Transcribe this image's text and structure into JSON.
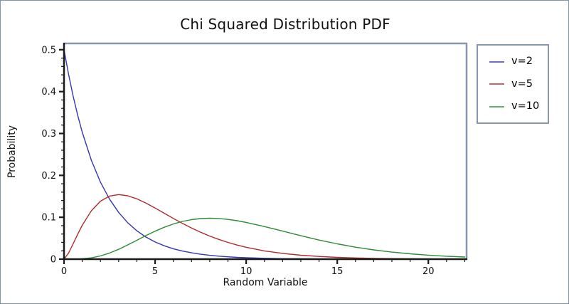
{
  "frame": {
    "background": "#ffffff",
    "window_border_color": "#7f95a8",
    "axis_color": "#1a1a1a",
    "box_color": "#8796ad",
    "text_color": "#111111"
  },
  "chart_data": {
    "type": "line",
    "title": "Chi Squared Distribution PDF",
    "xlabel": "Random Variable",
    "ylabel": "Probability",
    "xlim": [
      0,
      22.1
    ],
    "ylim": [
      0,
      0.515
    ],
    "grid": false,
    "legend_position": "outside-right",
    "x_ticks": {
      "values": [
        0,
        5,
        10,
        15,
        20
      ],
      "labels": [
        "0",
        "5",
        "10",
        "15",
        "20"
      ],
      "minor_step": 1
    },
    "y_ticks": {
      "values": [
        0,
        0.1,
        0.2,
        0.3,
        0.4,
        0.5
      ],
      "labels": [
        "0",
        "0.1",
        "0.2",
        "0.3",
        "0.4",
        "0.5"
      ],
      "minor_step": 0.02
    },
    "x": [
      0,
      0.25,
      0.5,
      0.75,
      1,
      1.5,
      2,
      2.5,
      3,
      3.5,
      4,
      4.5,
      5,
      5.5,
      6,
      6.5,
      7,
      7.5,
      8,
      8.5,
      9,
      9.5,
      10,
      11,
      12,
      13,
      14,
      15,
      16,
      17,
      18,
      19,
      20,
      21,
      22
    ],
    "series": [
      {
        "name": "v=2",
        "color": "#3535b5",
        "values": [
          0.5,
          0.4412,
          0.3894,
          0.3436,
          0.3033,
          0.2362,
          0.1839,
          0.1433,
          0.1116,
          0.0869,
          0.0677,
          0.0527,
          0.041,
          0.032,
          0.0249,
          0.0194,
          0.0151,
          0.0118,
          0.0092,
          0.0071,
          0.0056,
          0.0043,
          0.0034,
          0.002,
          0.0012,
          0.0008,
          0.0005,
          0.0003,
          0.0002,
          0.0001,
          0.0001,
          0.0,
          0.0,
          0.0,
          0.0
        ]
      },
      {
        "name": "v=5",
        "color": "#b02c2c",
        "values": [
          0.0,
          0.0147,
          0.0366,
          0.0594,
          0.0807,
          0.1154,
          0.1384,
          0.1506,
          0.1542,
          0.1513,
          0.144,
          0.1338,
          0.122,
          0.1097,
          0.0973,
          0.0854,
          0.0744,
          0.0642,
          0.0551,
          0.047,
          0.0399,
          0.0337,
          0.0283,
          0.0198,
          0.0137,
          0.0094,
          0.0064,
          0.0043,
          0.0029,
          0.0019,
          0.0013,
          0.0008,
          0.0005,
          0.0003,
          0.0002
        ]
      },
      {
        "name": "v=10",
        "color": "#2f8b37",
        "values": [
          0.0,
          0.0,
          0.0001,
          0.0003,
          0.0008,
          0.0031,
          0.0077,
          0.0146,
          0.0235,
          0.034,
          0.0451,
          0.0563,
          0.0668,
          0.0762,
          0.084,
          0.0901,
          0.0944,
          0.0969,
          0.0977,
          0.097,
          0.0949,
          0.0918,
          0.0877,
          0.0779,
          0.0669,
          0.0559,
          0.0456,
          0.0365,
          0.0286,
          0.0221,
          0.0169,
          0.0127,
          0.0095,
          0.007,
          0.0051
        ]
      }
    ]
  }
}
